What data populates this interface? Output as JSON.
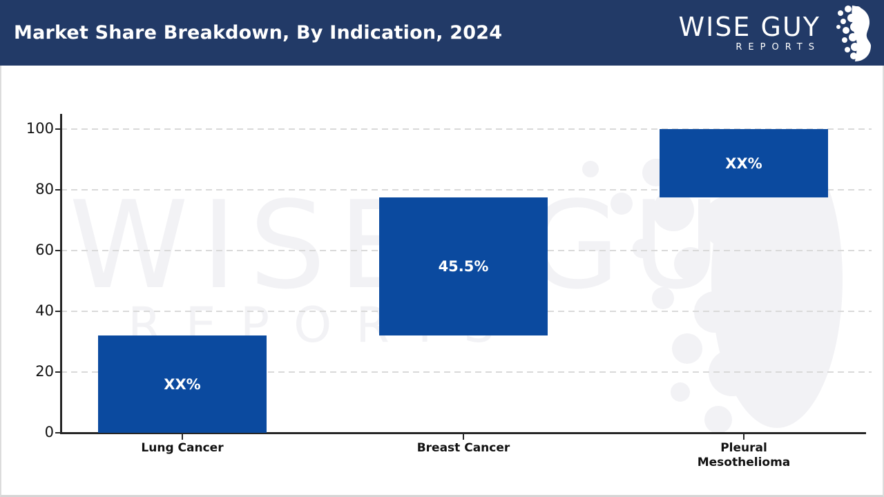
{
  "header": {
    "title": "Market Share Breakdown, By Indication, 2024",
    "logo": {
      "line1": "WISE GUY",
      "line2": "REPORTS"
    }
  },
  "watermark": {
    "line1": "WISE GUY",
    "line2": "REPORTS"
  },
  "chart_data": {
    "type": "bar",
    "subtype": "floating-stacked-percentage",
    "title": "Market Share Breakdown, By Indication, 2024",
    "categories": [
      "Lung Cancer",
      "Breast Cancer",
      "Pleural Mesothelioma"
    ],
    "bars": [
      {
        "category": "Lung Cancer",
        "start": 0,
        "end": 32,
        "label": "XX%"
      },
      {
        "category": "Breast Cancer",
        "start": 32,
        "end": 77.5,
        "label": "45.5%"
      },
      {
        "category": "Pleural Mesothelioma",
        "start": 77.5,
        "end": 100,
        "label": "XX%"
      }
    ],
    "xlabel": "",
    "ylabel": "",
    "ylim": [
      0,
      100
    ],
    "yticks": [
      0,
      20,
      40,
      60,
      80,
      100
    ],
    "grid": "horizontal-dashed",
    "legend": "none",
    "bar_color": "#0b4a9f"
  },
  "colors": {
    "header_bg": "#223a67",
    "bar": "#0b4a9f",
    "gridline": "#d9d9d9",
    "axis": "#262626",
    "watermark": "#f2f2f5",
    "label_text": "#111111",
    "bar_label_text": "#ffffff"
  }
}
